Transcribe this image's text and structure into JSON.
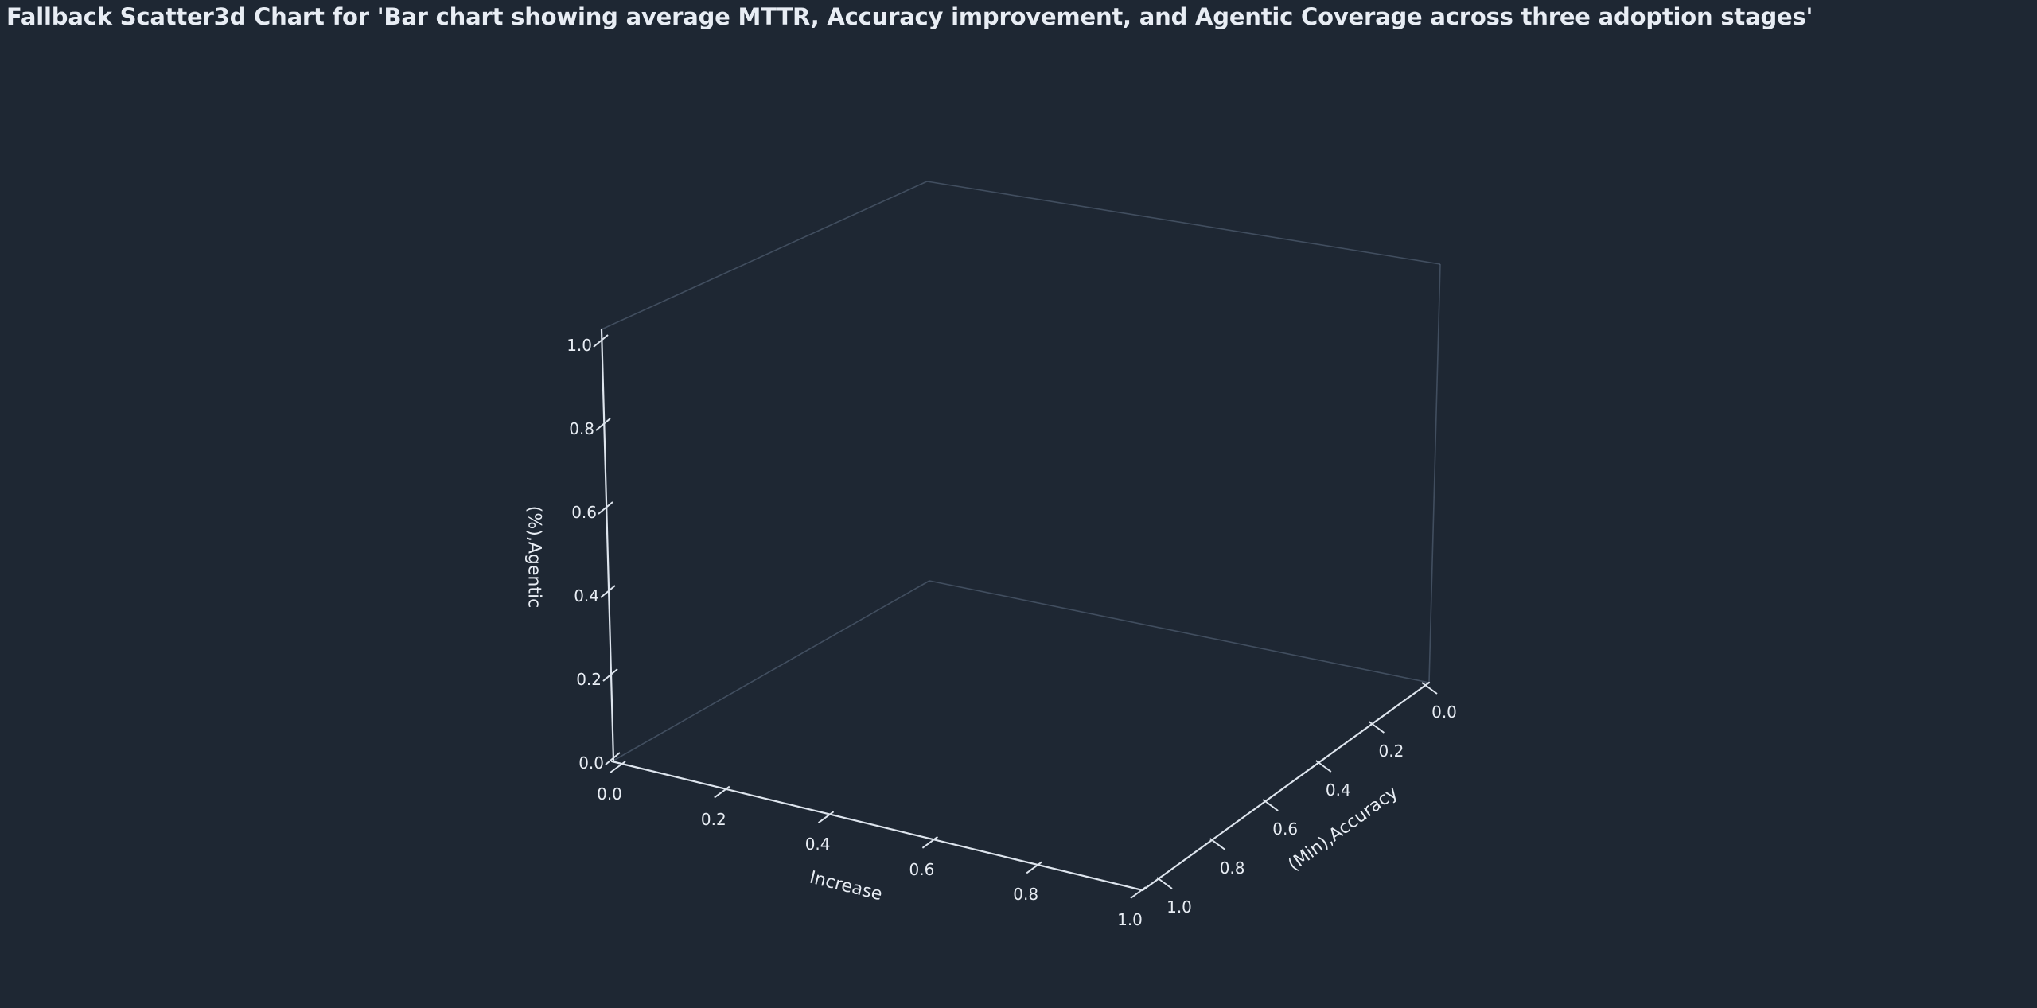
{
  "title": "Fallback Scatter3d Chart for 'Bar chart showing average MTTR, Accuracy improvement, and Agentic Coverage across three adoption stages'",
  "colors": {
    "background": "#1e2733",
    "axis": "#dde4ed",
    "text": "#e8edf4"
  },
  "chart_data": {
    "type": "scatter",
    "projection": "3d",
    "series": [],
    "title": "Fallback Scatter3d Chart for 'Bar chart showing average MTTR, Accuracy improvement, and Agentic Coverage across three adoption stages'",
    "axes": {
      "x": {
        "label": "Increase",
        "range": [
          0.0,
          1.0
        ],
        "ticks": [
          "0.0",
          "0.2",
          "0.4",
          "0.6",
          "0.8",
          "1.0"
        ]
      },
      "y": {
        "label": "(Min),Accuracy",
        "range": [
          0.0,
          1.0
        ],
        "ticks": [
          "0.0",
          "0.2",
          "0.4",
          "0.6",
          "0.8",
          "1.0"
        ]
      },
      "z": {
        "label": "(%),Agentic",
        "range": [
          0.0,
          1.0
        ],
        "ticks": [
          "0.0",
          "0.2",
          "0.4",
          "0.6",
          "0.8",
          "1.0"
        ]
      }
    },
    "legend": null,
    "grid": "3d-box-wireframe"
  }
}
